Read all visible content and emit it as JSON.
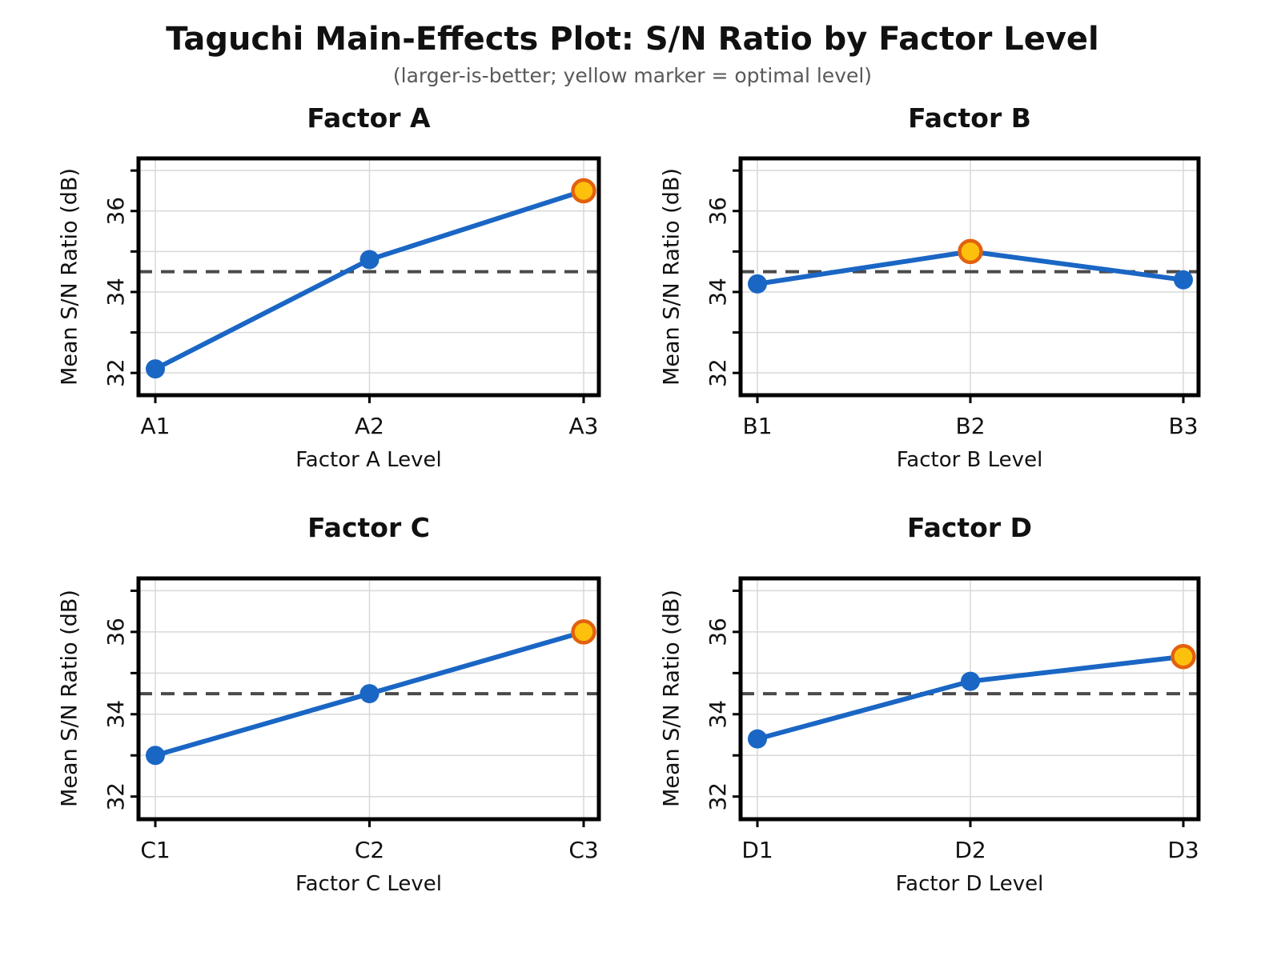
{
  "figure": {
    "title": "Taguchi Main-Effects Plot: S/N Ratio by Factor Level",
    "subtitle": "(larger-is-better; yellow marker = optimal level)"
  },
  "chart_data": {
    "type": "line",
    "layout": "2x2 grid of main-effects subplots",
    "title": "Taguchi Main-Effects Plot: S/N Ratio by Factor Level",
    "subtitle": "(larger-is-better; yellow marker = optimal level)",
    "ylabel": "Mean S/N Ratio (dB)",
    "ylim": [
      31.45,
      37.3
    ],
    "yticks": [
      32,
      33,
      34,
      35,
      36,
      37
    ],
    "ytick_labels": [
      "32",
      "",
      "34",
      "",
      "36",
      ""
    ],
    "grid": true,
    "overall_mean_line": {
      "value": 34.5,
      "style": "dashed"
    },
    "subplots": [
      {
        "title": "Factor A",
        "xlabel": "Factor A Level",
        "categories": [
          "A1",
          "A2",
          "A3"
        ],
        "values": [
          32.1,
          34.8,
          36.5
        ],
        "optimal_index": 2,
        "optimal_level": "A3"
      },
      {
        "title": "Factor B",
        "xlabel": "Factor B Level",
        "categories": [
          "B1",
          "B2",
          "B3"
        ],
        "values": [
          34.2,
          35.0,
          34.3
        ],
        "optimal_index": 1,
        "optimal_level": "B2"
      },
      {
        "title": "Factor C",
        "xlabel": "Factor C Level",
        "categories": [
          "C1",
          "C2",
          "C3"
        ],
        "values": [
          33.0,
          34.5,
          36.0
        ],
        "optimal_index": 2,
        "optimal_level": "C3"
      },
      {
        "title": "Factor D",
        "xlabel": "Factor D Level",
        "categories": [
          "D1",
          "D2",
          "D3"
        ],
        "values": [
          33.4,
          34.8,
          35.4
        ],
        "optimal_index": 2,
        "optimal_level": "D3"
      }
    ],
    "colors": {
      "series_line": "#1a66c4",
      "marker_fill": "#1a66c4",
      "optimal_marker_fill": "#fdc10d",
      "optimal_marker_edge": "#e2610e",
      "mean_line": "#4a4a4a",
      "grid": "#d8d8d8",
      "spine": "#000000",
      "tick": "#000000",
      "text": "#111111",
      "subtitle_text": "#595959"
    }
  }
}
